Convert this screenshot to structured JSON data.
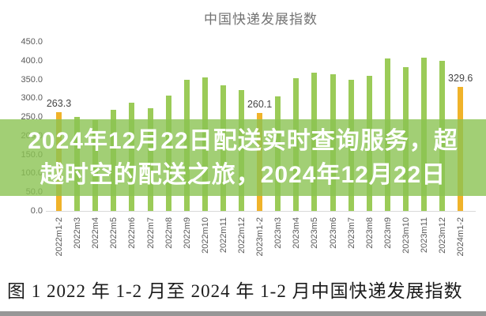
{
  "title": "中国快递发展指数",
  "banner": {
    "line1": "2024年12月22日配送实时查询服务，超",
    "line2": "越时空的配送之旅，2024年12月22日"
  },
  "caption": "图 1 2022 年 1-2 月至 2024 年 1-2 月中国快递发展指数",
  "colors": {
    "bar_green": "#9bcb58",
    "bar_highlight": "#f0b32a",
    "banner_bg": "rgba(139,195,82,0.8)",
    "banner_text": "#ffffff",
    "axis_text": "#595959",
    "title_text": "#737373",
    "data_label_text": "#444444",
    "axis_line": "#d9d9d9",
    "caption_text": "#1c1c1c",
    "bottom_strip": "#979797"
  },
  "chart_data": {
    "type": "bar",
    "title": "中国快递发展指数",
    "categories": [
      "2022m1-2",
      "2022m3",
      "2022m4",
      "2022m5",
      "2022m6",
      "2022m7",
      "2022m8",
      "2022m9",
      "2022m10",
      "2022m11",
      "2022m12",
      "2023m1-2",
      "2023m3",
      "2023m4",
      "2023m5",
      "2023m6",
      "2023m7",
      "2023m8",
      "2023m9",
      "2023m10",
      "2023m11",
      "2023m12",
      "2024m1-2"
    ],
    "values": [
      263.3,
      251,
      241,
      270,
      289,
      273,
      307,
      349,
      355,
      335,
      321,
      260.1,
      304,
      353,
      369,
      363,
      349,
      359,
      406,
      382,
      408,
      399,
      329.6
    ],
    "highlight_indices": [
      0,
      11,
      22
    ],
    "data_labels": [
      {
        "index": 0,
        "text": "263.3"
      },
      {
        "index": 11,
        "text": "260.1"
      },
      {
        "index": 22,
        "text": "329.6"
      }
    ],
    "y_ticks": [
      "450.0",
      "400.0",
      "350.0",
      "300.0",
      "250.0",
      "200.0",
      "150.0",
      "100.0",
      "50.0",
      "0.0"
    ],
    "ylim": [
      0,
      450
    ],
    "xlabel": "",
    "ylabel": "",
    "grid": false,
    "legend": false
  }
}
